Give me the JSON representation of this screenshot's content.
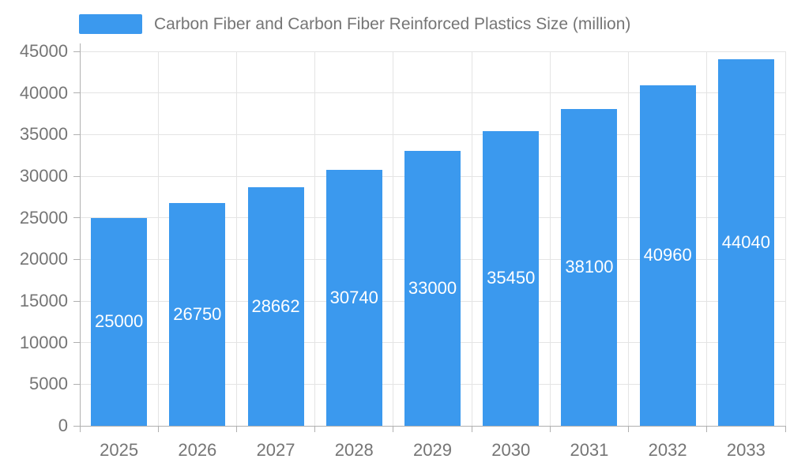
{
  "legend": {
    "label": "Carbon Fiber and Carbon Fiber Reinforced Plastics Size (million)"
  },
  "chart_data": {
    "type": "bar",
    "title": "Carbon Fiber and Carbon Fiber Reinforced Plastics Size (million)",
    "xlabel": "",
    "ylabel": "",
    "categories": [
      "2025",
      "2026",
      "2027",
      "2028",
      "2029",
      "2030",
      "2031",
      "2032",
      "2033"
    ],
    "series": [
      {
        "name": "Carbon Fiber and Carbon Fiber Reinforced Plastics Size (million)",
        "values": [
          25000,
          26750,
          28662,
          30740,
          33000,
          35450,
          38100,
          40960,
          44040
        ]
      }
    ],
    "value_labels_shown": true,
    "ylim": [
      0,
      45000
    ],
    "ytick_step": 5000,
    "ytick_labels": [
      "0",
      "5000",
      "10000",
      "15000",
      "20000",
      "25000",
      "30000",
      "35000",
      "40000",
      "45000"
    ],
    "grid": true,
    "legend_position": "top-left",
    "colors": {
      "bar": "#3b99ee",
      "value_label": "#ffffff",
      "axis": "#b0b0b0",
      "grid": "#e4e4e4",
      "tick_text": "#757575",
      "background": "#ffffff"
    }
  }
}
